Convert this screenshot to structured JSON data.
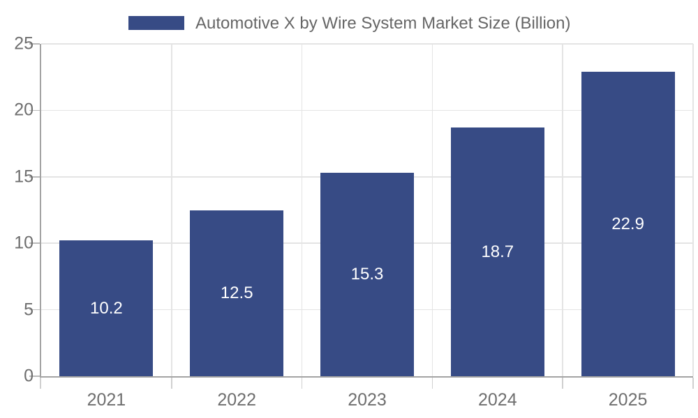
{
  "legend": {
    "label": "Automotive X by Wire System Market Size (Billion)"
  },
  "chart_data": {
    "type": "bar",
    "title": "Automotive X by Wire System Market Size (Billion)",
    "categories": [
      "2021",
      "2022",
      "2023",
      "2024",
      "2025"
    ],
    "values": [
      10.2,
      12.5,
      15.3,
      18.7,
      22.9
    ],
    "value_labels": [
      "10.2",
      "12.5",
      "15.3",
      "18.7",
      "22.9"
    ],
    "xlabel": "",
    "ylabel": "",
    "ylim": [
      0,
      25
    ],
    "yticks": [
      0,
      5,
      10,
      15,
      20,
      25
    ],
    "grid": true,
    "legend_position": "top-center",
    "bar_color": "#374B85",
    "value_label_color": "#ffffff"
  }
}
